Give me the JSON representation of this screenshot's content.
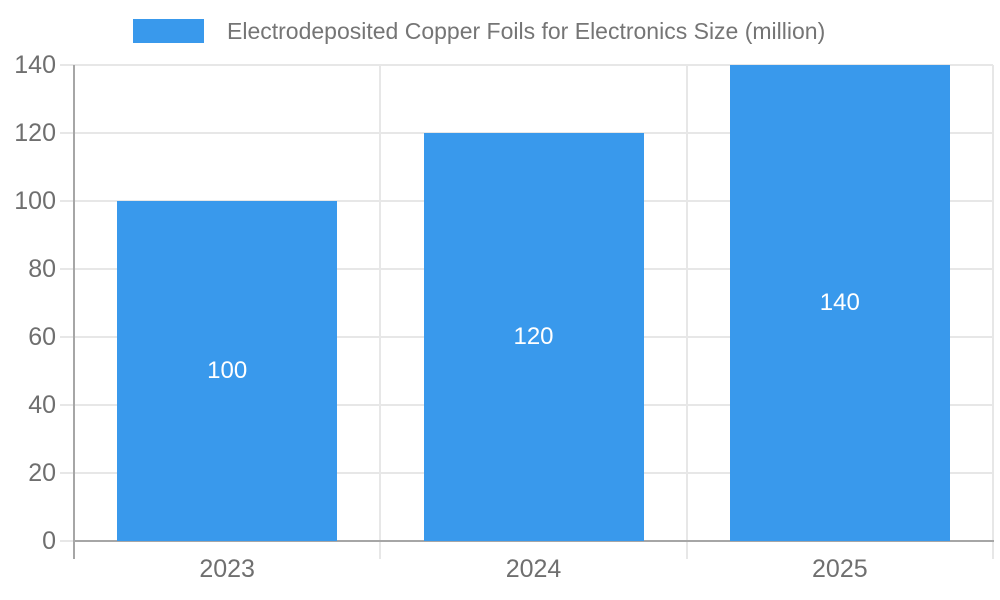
{
  "chart_data": {
    "type": "bar",
    "title": "Electrodeposited Copper Foils for Electronics Size (million)",
    "legend": [
      "Electrodeposited Copper Foils for Electronics Size (million)"
    ],
    "legend_position": "top",
    "categories": [
      "2023",
      "2024",
      "2025"
    ],
    "values": [
      100,
      120,
      140
    ],
    "bar_labels": [
      "100",
      "120",
      "140"
    ],
    "series": [
      {
        "name": "Electrodeposited Copper Foils for Electronics Size (million)",
        "values": [
          100,
          120,
          140
        ]
      }
    ],
    "xlabel": "",
    "ylabel": "",
    "ylim": [
      0,
      140
    ],
    "yticks": [
      0,
      20,
      40,
      60,
      80,
      100,
      120,
      140
    ],
    "grid": true,
    "colors": {
      "bar": "#3999EC",
      "grid": "#E7E7E7",
      "axis": "#A6A6A6",
      "tick_label": "#6F6F6F",
      "legend_text": "#757575",
      "bar_label": "#FFFFFF",
      "background": "#FFFFFF"
    }
  }
}
